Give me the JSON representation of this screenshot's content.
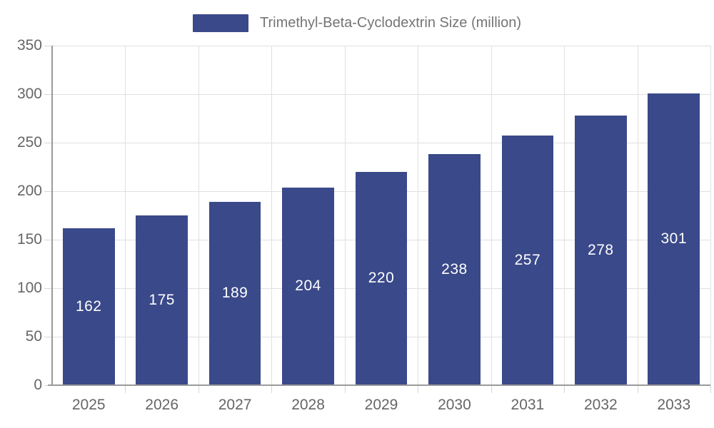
{
  "legend": {
    "label": "Trimethyl-Beta-Cyclodextrin Size (million)"
  },
  "colors": {
    "bar": "#3a4989",
    "grid": "#e0e0e0",
    "axis": "#9a9a9a",
    "tick": "#d6d6d6",
    "axis_text": "#666666",
    "legend_text": "#757575",
    "bar_label": "#ffffff",
    "background": "#ffffff"
  },
  "chart_data": {
    "type": "bar",
    "title": "Trimethyl-Beta-Cyclodextrin Size (million)",
    "categories": [
      "2025",
      "2026",
      "2027",
      "2028",
      "2029",
      "2030",
      "2031",
      "2032",
      "2033"
    ],
    "values": [
      162,
      175,
      189,
      204,
      220,
      238,
      257,
      278,
      301
    ],
    "xlabel": "",
    "ylabel": "",
    "ylim": [
      0,
      350
    ],
    "ytick_step": 50,
    "yticks": [
      0,
      50,
      100,
      150,
      200,
      250,
      300,
      350
    ],
    "grid": true,
    "legend_position": "top",
    "bar_label_position": "center-inside",
    "bar_width_fraction": 0.71
  }
}
